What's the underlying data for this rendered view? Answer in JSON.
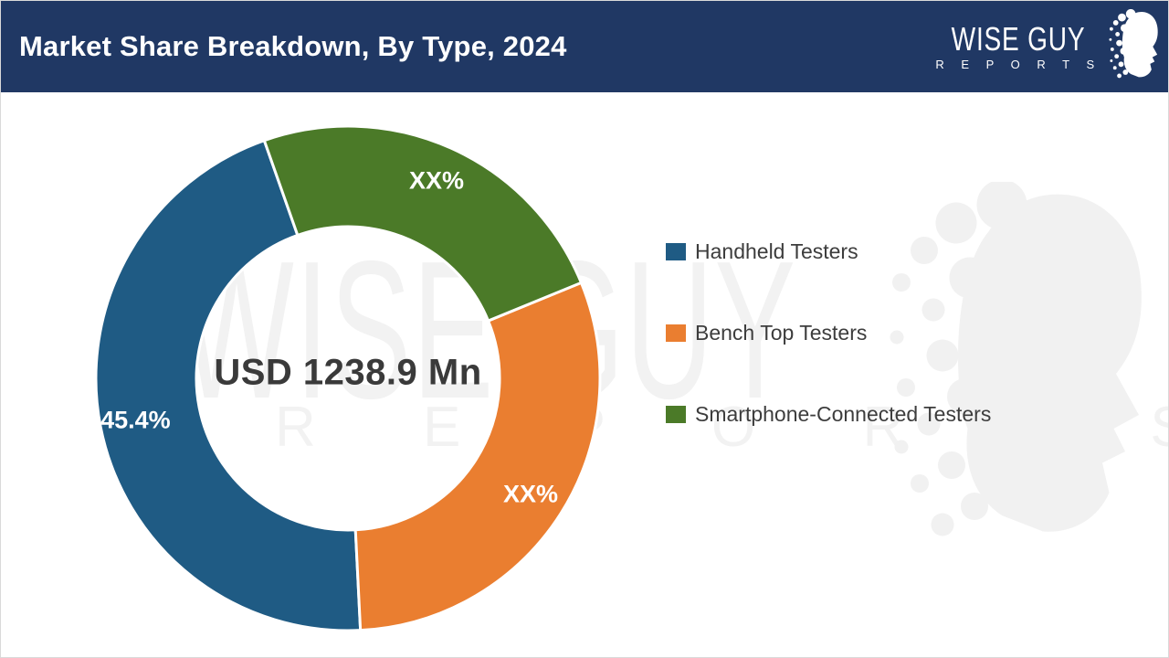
{
  "header": {
    "title": "Market Share Breakdown, By Type, 2024",
    "background_color": "#203864",
    "logo": {
      "name": "WISE GUY",
      "subtitle": "R E P O R T S"
    }
  },
  "watermark": {
    "line1": "WISE GUY",
    "line2": "R E P O R T S"
  },
  "chart_data": {
    "type": "pie",
    "style": "donut",
    "title": "Market Share Breakdown, By Type, 2024",
    "center_label": "USD 1238.9 Mn",
    "start_angle_deg": 109.4,
    "direction": "counterclockwise",
    "inner_radius_ratio": 0.6,
    "legend_position": "right",
    "slices": [
      {
        "name": "Handheld Testers",
        "value": 45.4,
        "display_label": "45.4%",
        "color": "#1F5B84"
      },
      {
        "name": "Bench Top Testers",
        "value": 30.4,
        "display_label": "XX%",
        "color": "#EA7E30"
      },
      {
        "name": "Smartphone-Connected Testers",
        "value": 24.2,
        "display_label": "XX%",
        "color": "#4B7A28"
      }
    ]
  }
}
